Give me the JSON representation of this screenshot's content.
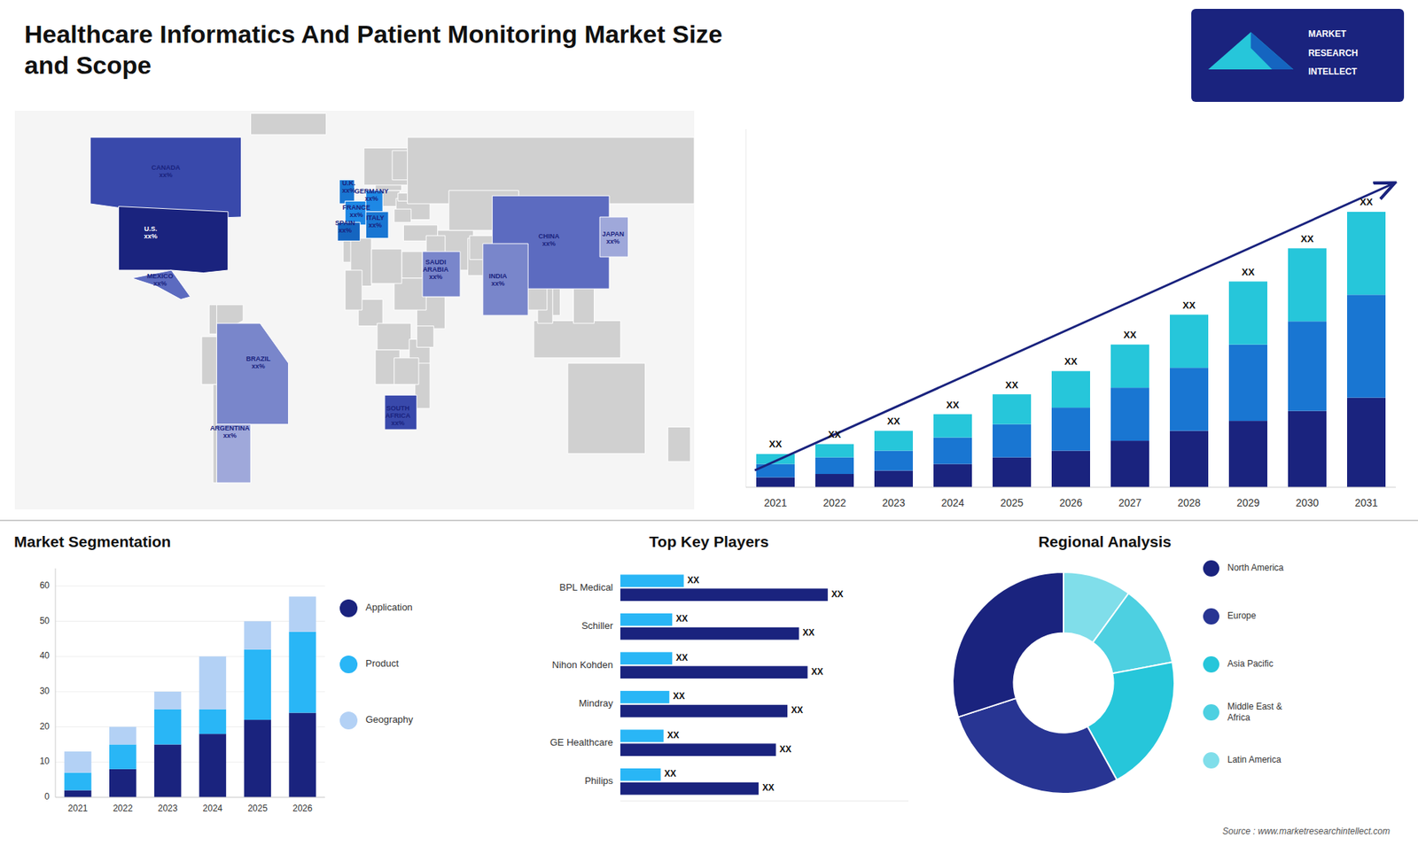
{
  "chart_data": [
    {
      "type": "map",
      "title": "Healthcare Informatics And Patient Monitoring Market Size\nand Scope",
      "xlim": [
        -180,
        180
      ],
      "ylim": [
        -65,
        85
      ],
      "annotations": [
        {
          "text": "U.S.\nxx%",
          "x": -108,
          "y": 39
        },
        {
          "text": "CANADA\nxx%",
          "x": -100,
          "y": 62
        },
        {
          "text": "MEXICO\nxx%",
          "x": -103,
          "y": 21
        },
        {
          "text": "BRAZIL\nxx%",
          "x": -51,
          "y": -10
        },
        {
          "text": "ARGENTINA\nxx%",
          "x": -66,
          "y": -36
        },
        {
          "text": "U.K.\nxx%",
          "x": -3,
          "y": 56
        },
        {
          "text": "FRANCE\nxx%",
          "x": 1,
          "y": 47
        },
        {
          "text": "SPAIN\nxx%",
          "x": -5,
          "y": 41
        },
        {
          "text": "GERMANY\nxx%",
          "x": 9,
          "y": 53
        },
        {
          "text": "ITALY\nxx%",
          "x": 11,
          "y": 43
        },
        {
          "text": "SAUDI\nARABIA\nxx%",
          "x": 43,
          "y": 25
        },
        {
          "text": "SOUTH\nAFRICA\nxx%",
          "x": 23,
          "y": -30
        },
        {
          "text": "CHINA\nxx%",
          "x": 103,
          "y": 36
        },
        {
          "text": "INDIA\nxx%",
          "x": 76,
          "y": 21
        },
        {
          "text": "JAPAN\nxx%",
          "x": 137,
          "y": 37
        }
      ]
    },
    {
      "type": "bar",
      "stacked": true,
      "categories": [
        "2021",
        "2022",
        "2023",
        "2024",
        "2025",
        "2026",
        "2027",
        "2028",
        "2029",
        "2030",
        "2031"
      ],
      "series": [
        {
          "color": "#1a237e",
          "values": [
            3,
            4,
            5,
            7,
            9,
            11,
            14,
            17,
            20,
            23,
            27
          ]
        },
        {
          "color": "#1976d2",
          "values": [
            4,
            5,
            6,
            8,
            10,
            13,
            16,
            19,
            23,
            27,
            31
          ]
        },
        {
          "color": "#26c6da",
          "values": [
            3,
            4,
            6,
            7,
            9,
            11,
            13,
            16,
            19,
            22,
            25
          ],
          "value_labels": [
            "XX",
            "XX",
            "XX",
            "XX",
            "XX",
            "XX",
            "XX",
            "XX",
            "XX",
            "XX",
            "XX"
          ]
        }
      ],
      "ylim": [
        0,
        107.9
      ],
      "tick_labels": "x",
      "annotations": [
        "MARKET",
        "RESEARCH",
        "INTELLECT",
        "Source : www.marketresearchintellect.com"
      ]
    },
    {
      "type": "bar",
      "stacked": true,
      "title": "Market Segmentation",
      "categories": [
        "2021",
        "2022",
        "2023",
        "2024",
        "2025",
        "2026"
      ],
      "series": [
        {
          "name": "Application",
          "color": "#1a237e",
          "values": [
            2,
            8,
            15,
            18,
            22,
            24
          ]
        },
        {
          "name": "Product",
          "color": "#29b6f6",
          "values": [
            5,
            7,
            10,
            7,
            20,
            23
          ]
        },
        {
          "name": "Geography",
          "color": "#b3d1f5",
          "values": [
            6,
            5,
            5,
            15,
            8,
            10
          ]
        }
      ],
      "ylim": [
        0,
        65
      ],
      "yticks": [
        0,
        10,
        20,
        30,
        40,
        50,
        60
      ],
      "grid": true,
      "legend": "right"
    },
    {
      "type": "bar",
      "orientation": "horizontal",
      "title": "Top Key Players",
      "categories": [
        "BPL Medical",
        "Schiller",
        "Nihon Kohden",
        "Mindray",
        "GE Healthcare",
        "Philips"
      ],
      "series": [
        {
          "color": "#1a237e",
          "values": [
            0.72,
            0.62,
            0.65,
            0.58,
            0.54,
            0.48
          ],
          "value_labels": [
            "XX",
            "XX",
            "XX",
            "XX",
            "XX",
            "XX"
          ]
        },
        {
          "color": "#29b6f6",
          "values": [
            0.22,
            0.18,
            0.18,
            0.17,
            0.15,
            0.14
          ],
          "value_labels": [
            "XX",
            "XX",
            "XX",
            "XX",
            "XX",
            "XX"
          ]
        }
      ],
      "xlim": [
        0,
        1.0
      ],
      "tick_labels": "y"
    },
    {
      "type": "pie",
      "title": "Regional Analysis",
      "categories": [
        "Latin America",
        "Middle East &\nAfrica",
        "Asia Pacific",
        "Europe",
        "North America"
      ],
      "values": [
        10,
        12,
        20,
        28,
        30
      ],
      "colors": [
        "#80deea",
        "#4dd0e1",
        "#26c6da",
        "#283593",
        "#1a237e"
      ],
      "legend": "right"
    }
  ]
}
